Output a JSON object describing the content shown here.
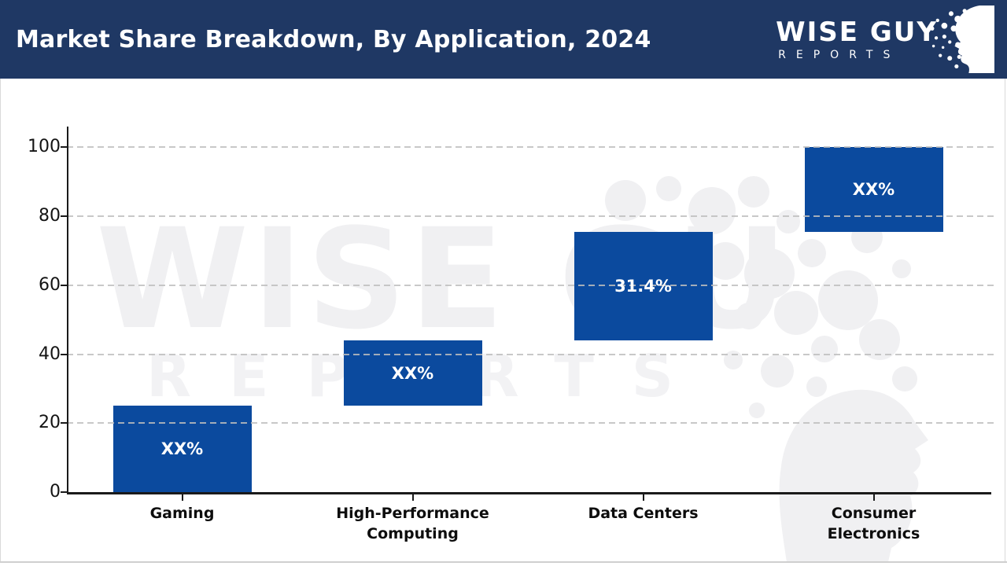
{
  "header": {
    "title": "Market Share Breakdown, By Application, 2024",
    "bg_color": "#1f3864",
    "logo": {
      "line1": "WISE GUY",
      "line2": "REPORTS"
    }
  },
  "watermark": {
    "line1": "WISE GU",
    "line2": "REPORTS"
  },
  "chart_data": {
    "type": "bar",
    "subtype": "floating-waterfall",
    "title": "Market Share Breakdown, By Application, 2024",
    "xlabel": "",
    "ylabel": "",
    "categories": [
      "Gaming",
      "High-Performance\nComputing",
      "Data Centers",
      "Consumer\nElectronics"
    ],
    "series": [
      {
        "name": "Market share (%)",
        "segments": [
          {
            "category": "Gaming",
            "start": 0,
            "end": 25,
            "label": "XX%"
          },
          {
            "category": "High-Performance Computing",
            "start": 25,
            "end": 44,
            "label": "XX%"
          },
          {
            "category": "Data Centers",
            "start": 44,
            "end": 75.4,
            "value": 31.4,
            "label": "31.4%"
          },
          {
            "category": "Consumer Electronics",
            "start": 75.4,
            "end": 100,
            "label": "XX%"
          }
        ]
      }
    ],
    "yticks": [
      0,
      20,
      40,
      60,
      80,
      100
    ],
    "ylim": [
      0,
      106
    ],
    "grid": "horizontal-dashed",
    "grid_over_bars": true,
    "legend": "none",
    "bar_color": "#0b4a9e",
    "bar_label_color": "#ffffff",
    "axis_color": "#1a1a1a",
    "grid_color": "#c8c8c8"
  }
}
